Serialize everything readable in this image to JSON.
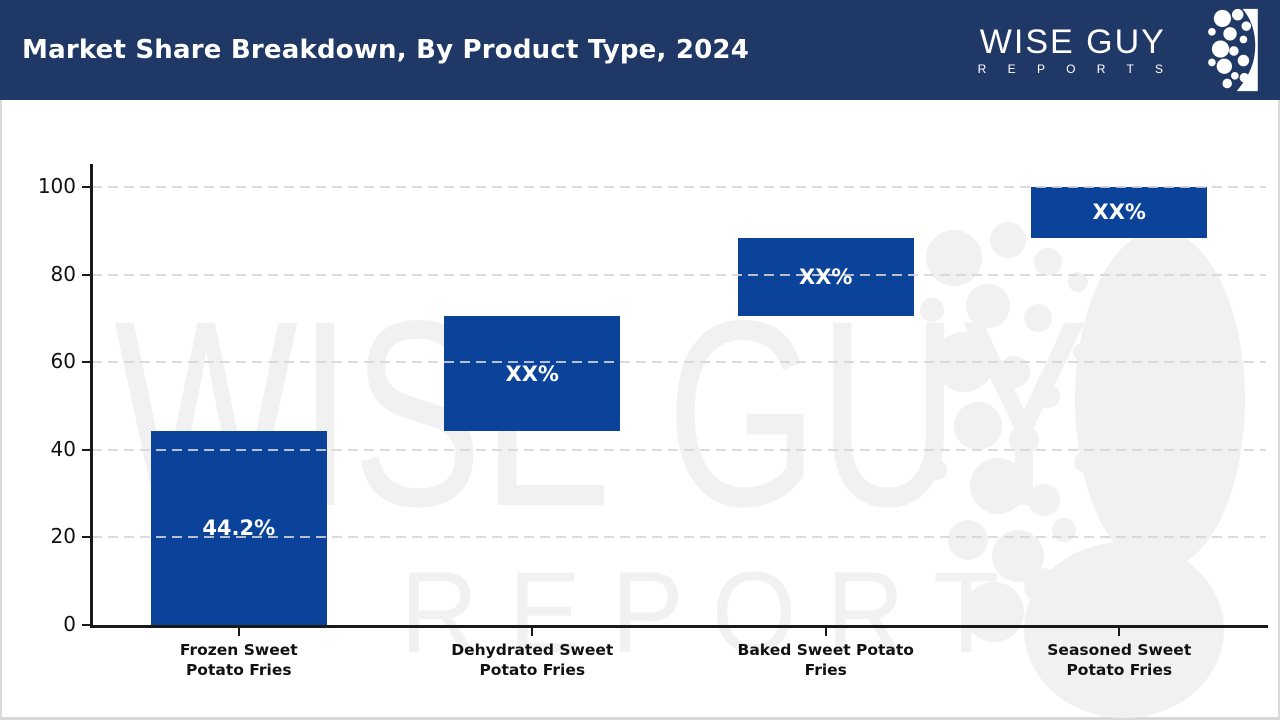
{
  "header": {
    "title": "Market Share Breakdown, By Product Type, 2024",
    "bg_color": "#1f3866",
    "logo": {
      "wordmark": "WISE GUY",
      "subtext": "R E P O R T S"
    }
  },
  "watermark": {
    "line1": "WISE GUY",
    "line2": "R E P O R T S"
  },
  "chart_data": {
    "type": "bar",
    "subtype": "waterfall",
    "title": "Market Share Breakdown, By Product Type, 2024",
    "categories": [
      {
        "lines": [
          "Frozen Sweet",
          "Potato Fries"
        ]
      },
      {
        "lines": [
          "Dehydrated Sweet",
          "Potato Fries"
        ]
      },
      {
        "lines": [
          "Baked Sweet Potato",
          "Fries"
        ]
      },
      {
        "lines": [
          "Seasoned Sweet",
          "Potato Fries"
        ]
      }
    ],
    "segments": [
      {
        "name": "Frozen Sweet Potato Fries",
        "start": 0,
        "end": 44.2,
        "label": "44.2%"
      },
      {
        "name": "Dehydrated Sweet Potato Fries",
        "start": 44.2,
        "end": 70.6,
        "label": "XX%"
      },
      {
        "name": "Baked Sweet Potato Fries",
        "start": 70.6,
        "end": 88.4,
        "label": "XX%"
      },
      {
        "name": "Seasoned Sweet Potato Fries",
        "start": 88.4,
        "end": 100,
        "label": "XX%"
      }
    ],
    "ylim": [
      0,
      100
    ],
    "yticks": [
      0,
      20,
      40,
      60,
      80,
      100
    ],
    "grid": {
      "axis": "y",
      "style": "dashed"
    },
    "legend": "none",
    "bar_color": "#0a4399",
    "bar_label_color": "#ffffff"
  }
}
